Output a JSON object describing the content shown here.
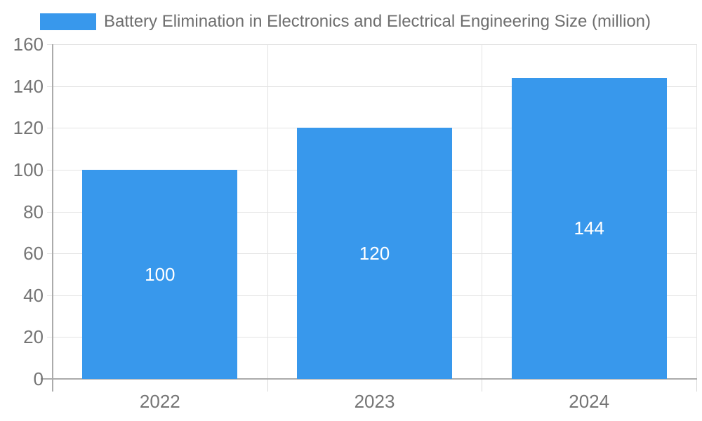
{
  "legend": {
    "label": "Battery Elimination in Electronics and Electrical Engineering Size (million)"
  },
  "chart_data": {
    "type": "bar",
    "title": "Battery Elimination in Electronics and Electrical Engineering Size (million)",
    "categories": [
      "2022",
      "2023",
      "2024"
    ],
    "series": [
      {
        "name": "Battery Elimination in Electronics and Electrical Engineering Size (million)",
        "values": [
          100,
          120,
          144
        ]
      }
    ],
    "bar_value_labels": [
      "100",
      "120",
      "144"
    ],
    "xlabel": "",
    "ylabel": "",
    "ylim": [
      0,
      160
    ],
    "yticks": [
      0,
      20,
      40,
      60,
      80,
      100,
      120,
      140,
      160
    ],
    "grid": true,
    "legend_position": "top-left",
    "colors": {
      "bar": "#3898EC",
      "grid": "#E3E3E3",
      "axis": "#ABABAB",
      "minor_tick": "#D9D9D9",
      "tick_label": "#757575",
      "title": "#6E6E6E",
      "value_label": "#FFFFFF",
      "background": "#FFFFFF"
    }
  }
}
